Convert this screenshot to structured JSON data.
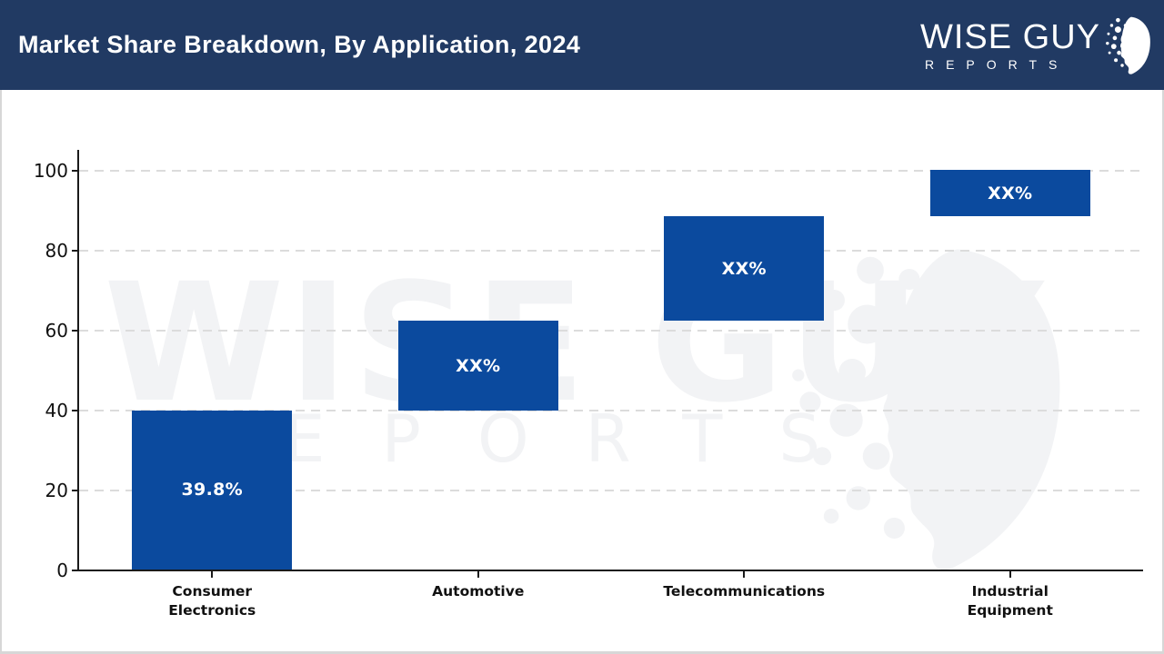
{
  "header": {
    "title": "Market Share Breakdown, By Application, 2024",
    "brand": {
      "line1": "WISE GUY",
      "line2": "REPORTS"
    }
  },
  "watermark": {
    "line1": "WISE GUY",
    "line2": "REPORTS"
  },
  "chart_data": {
    "type": "bar",
    "subtype": "waterfall",
    "title": "Market Share Breakdown, By Application, 2024",
    "categories": [
      "Consumer Electronics",
      "Automotive",
      "Telecommunications",
      "Industrial Equipment"
    ],
    "segments": [
      {
        "category": "Consumer Electronics",
        "lines": [
          "Consumer",
          "Electronics"
        ],
        "start": 0,
        "end": 39.8,
        "label": "39.8%"
      },
      {
        "category": "Automotive",
        "lines": [
          "Automotive"
        ],
        "start": 39.8,
        "end": 62.2,
        "label": "XX%"
      },
      {
        "category": "Telecommunications",
        "lines": [
          "Telecommunications"
        ],
        "start": 62.2,
        "end": 88.4,
        "label": "XX%"
      },
      {
        "category": "Industrial Equipment",
        "lines": [
          "Industrial",
          "Equipment"
        ],
        "start": 88.4,
        "end": 100.0,
        "label": "XX%"
      }
    ],
    "y_ticks": [
      0,
      20,
      40,
      60,
      80,
      100
    ],
    "ylim": [
      0,
      105
    ],
    "ylabel": "",
    "xlabel": "",
    "legend": "none",
    "grid": {
      "horizontal": true,
      "style": "dashed"
    },
    "colors": {
      "bar": "#0b4a9e",
      "header_bg": "#213a63",
      "grid": "#dcdcdc",
      "axis": "#1a1a1a",
      "watermark": "#f2f3f5",
      "bar_label": "#ffffff"
    }
  }
}
